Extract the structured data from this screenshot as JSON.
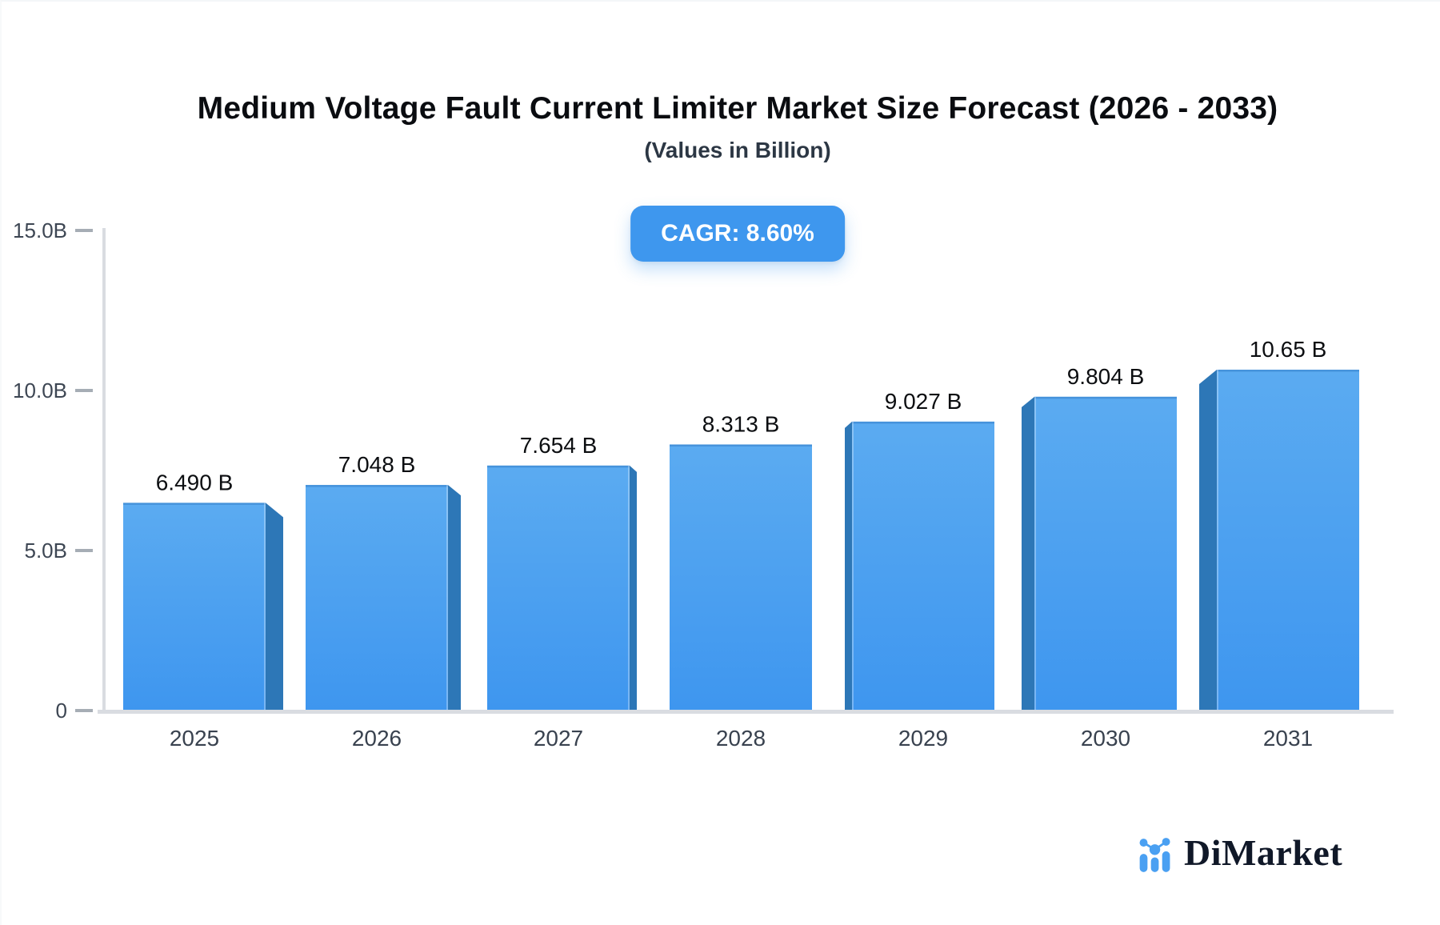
{
  "header": {
    "title": "Medium Voltage Fault Current Limiter Market Size Forecast (2026 - 2033)",
    "subtitle": "(Values in Billion)",
    "cagr_badge": "CAGR: 8.60%"
  },
  "chart_data": {
    "type": "bar",
    "title": "Medium Voltage Fault Current Limiter Market Size Forecast (2026 - 2033)",
    "subtitle": "(Values in Billion)",
    "cagr_label": "CAGR: 8.60%",
    "categories": [
      "2025",
      "2026",
      "2027",
      "2028",
      "2029",
      "2030",
      "2031"
    ],
    "values": [
      6.49,
      7.048,
      7.654,
      8.313,
      9.027,
      9.804,
      10.65
    ],
    "bar_labels": [
      "6.490 B",
      "7.048 B",
      "7.654 B",
      "8.313 B",
      "9.027 B",
      "9.804 B",
      "10.65 B"
    ],
    "ylim": [
      0,
      15
    ],
    "ytick_values": [
      0,
      5,
      10,
      15
    ],
    "ytick_labels": [
      "0",
      "5.0B",
      "10.0B",
      "15.0B"
    ],
    "grid": false,
    "legend": null,
    "units": "Billion",
    "colors": {
      "bar_face_top": "#5babf1",
      "bar_face_bottom": "#3e96ef",
      "bar_side": "#2d77b7",
      "bar_top_edge": "#3c86cf",
      "accent_badge": "#3e97ee",
      "axis_line": "#d9dce1",
      "tick_dash": "#a6adb5",
      "tick_label": "#3d4653",
      "category_label": "#39424f",
      "value_label": "#0c0e11",
      "title": "#0a0c10",
      "logo_navy": "#101828",
      "logo_blue": "#4aa0f2"
    }
  },
  "logo": {
    "text": "DiMarket"
  }
}
